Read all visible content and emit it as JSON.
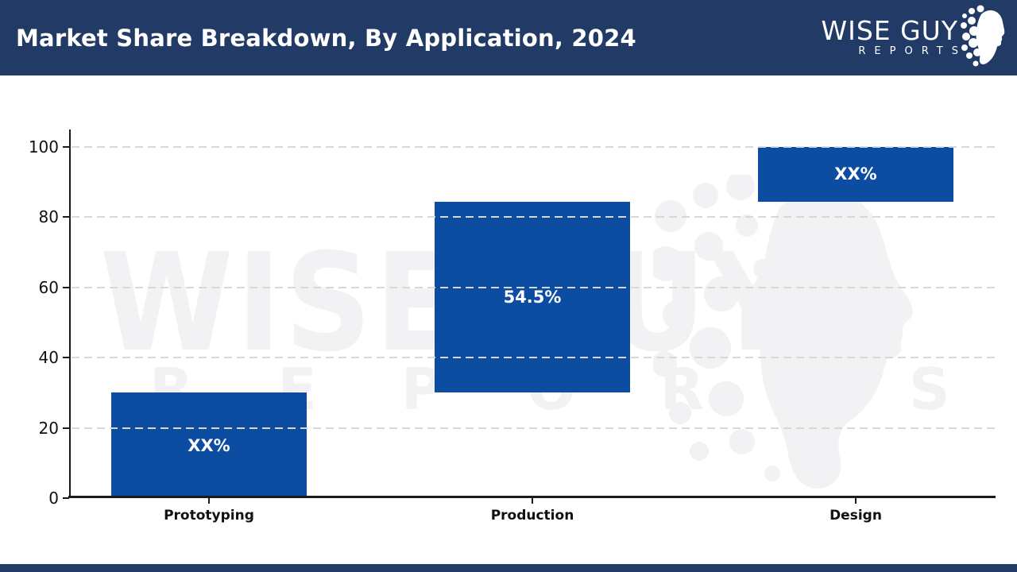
{
  "header": {
    "title": "Market Share Breakdown, By Application, 2024",
    "logo": {
      "line1": "WISE GUY",
      "line2": "REPORTS"
    }
  },
  "watermark": {
    "line1": "WISE GUY",
    "line2": "REPORTS"
  },
  "footer": {},
  "chart_data": {
    "type": "bar",
    "variant": "floating-segment-bars",
    "title": "Market Share Breakdown, By Application, 2024",
    "categories": [
      "Prototyping",
      "Production",
      "Design"
    ],
    "series": [
      {
        "name": "Market Share",
        "segments": [
          [
            0,
            30
          ],
          [
            30,
            84.5
          ],
          [
            84.5,
            100
          ]
        ],
        "heights": [
          30,
          54.5,
          15.5
        ],
        "labels": [
          "XX%",
          "54.5%",
          "XX%"
        ]
      }
    ],
    "xlabel": "",
    "ylabel": "",
    "ylim": [
      0,
      100
    ],
    "yticks": [
      0,
      20,
      40,
      60,
      80,
      100
    ],
    "grid": "horizontal-dashed",
    "legend": "none",
    "bar_color": "#0C4DA2"
  },
  "colors": {
    "header_bg": "#213A66",
    "footer_bg": "#213A66",
    "bar": "#0C4DA2",
    "grid": "#D8D8D8",
    "axis": "#1A1A1A",
    "bar_label_text": "#FFFFFF",
    "watermark": "#F2F2F4"
  }
}
